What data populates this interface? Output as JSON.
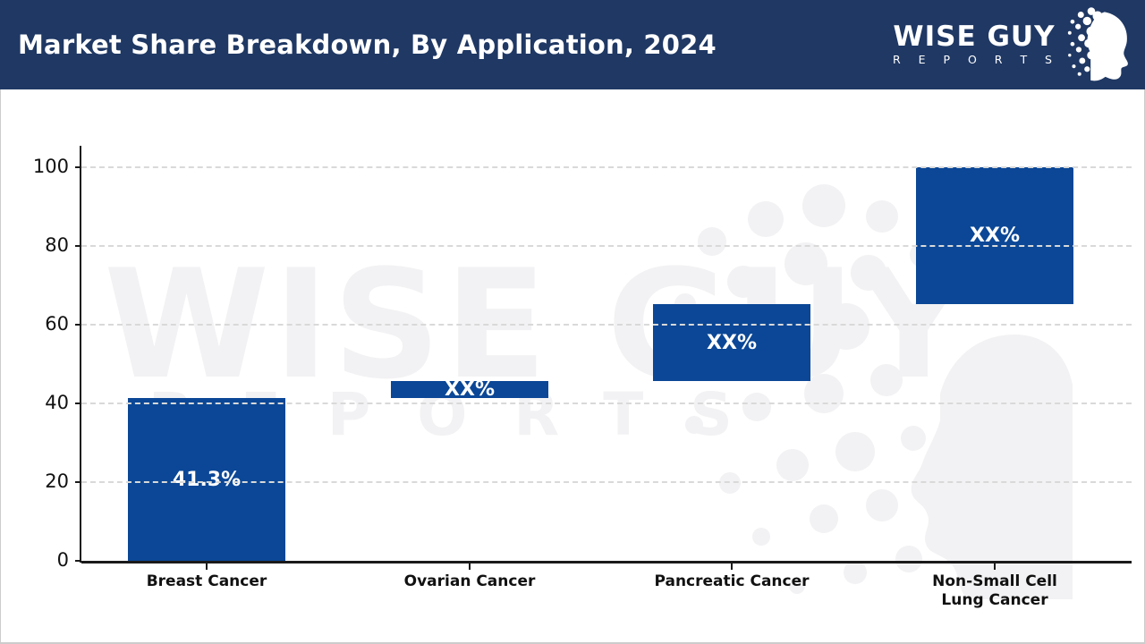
{
  "header": {
    "title": "Market Share Breakdown, By Application, 2024",
    "logo": {
      "name": "WISE GUY",
      "subtitle": "R E P O R T S"
    }
  },
  "watermark": {
    "line1": "WISE GUY",
    "line2": "REPORTS"
  },
  "chart_data": {
    "type": "bar",
    "subtype": "waterfall",
    "title": "Market Share Breakdown, By Application, 2024",
    "categories": [
      "Breast Cancer",
      "Ovarian Cancer",
      "Pancreatic Cancer",
      "Non-Small Cell Lung Cancer"
    ],
    "segments": [
      {
        "category": "Breast Cancer",
        "start": 0,
        "end": 41.3,
        "label": "41.3%"
      },
      {
        "category": "Ovarian Cancer",
        "start": 41.3,
        "end": 45.6,
        "label": "XX%"
      },
      {
        "category": "Pancreatic Cancer",
        "start": 45.6,
        "end": 65.2,
        "label": "XX%"
      },
      {
        "category": "Non-Small Cell Lung Cancer",
        "start": 65.2,
        "end": 100,
        "label": "XX%"
      }
    ],
    "xlabel": "",
    "ylabel": "",
    "ylim": [
      0,
      100
    ],
    "yticks": [
      0,
      20,
      40,
      60,
      80,
      100
    ],
    "grid": "horizontal-dashed",
    "legend": "none",
    "bar_color": "#0b4796",
    "bar_label_color": "#ffffff",
    "header_color": "#1f3864"
  }
}
